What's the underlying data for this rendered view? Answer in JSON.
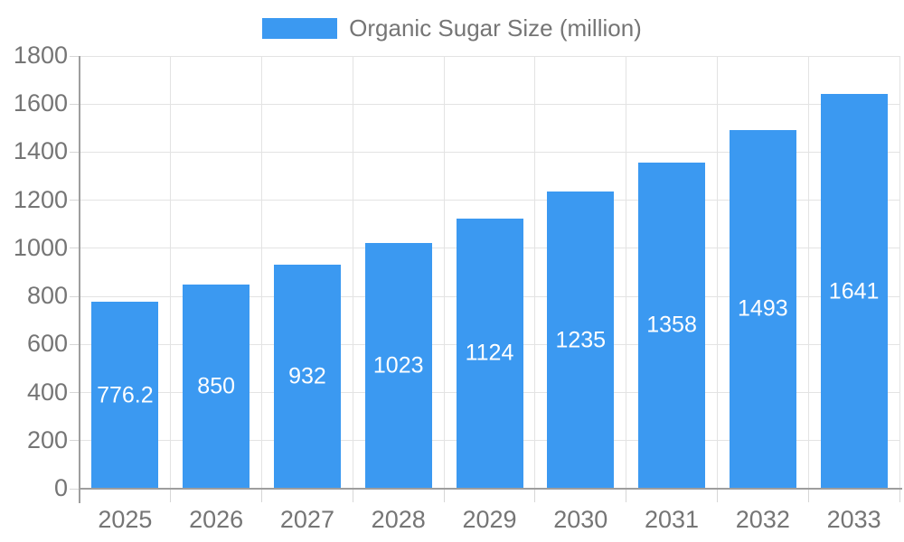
{
  "chart_data": {
    "type": "bar",
    "title": "Organic Sugar Size (million)",
    "categories": [
      "2025",
      "2026",
      "2027",
      "2028",
      "2029",
      "2030",
      "2031",
      "2032",
      "2033"
    ],
    "series": [
      {
        "name": "Organic Sugar Size (million)",
        "values": [
          776.2,
          850,
          932,
          1023,
          1124,
          1235,
          1358,
          1493,
          1641
        ],
        "value_labels": [
          "776.2",
          "850",
          "932",
          "1023",
          "1124",
          "1235",
          "1358",
          "1493",
          "1641"
        ]
      }
    ],
    "ylim": [
      0,
      1800
    ],
    "ytick_step": 200,
    "ytick_labels": [
      "0",
      "200",
      "400",
      "600",
      "800",
      "1000",
      "1200",
      "1400",
      "1600",
      "1800"
    ],
    "grid": true,
    "legend_position": "top-center",
    "colors": {
      "bar": "#3b99f1",
      "bar_value_label": "#ffffff",
      "axis_text": "#757575",
      "legend_text": "#757575",
      "gridline": "#e3e3e3",
      "axis_line": "#9e9e9e",
      "tick": "#d6d6d6",
      "background": "#ffffff"
    }
  },
  "legend": {
    "items": [
      {
        "label": "Organic Sugar Size (million)",
        "color": "#3b99f1"
      }
    ]
  }
}
